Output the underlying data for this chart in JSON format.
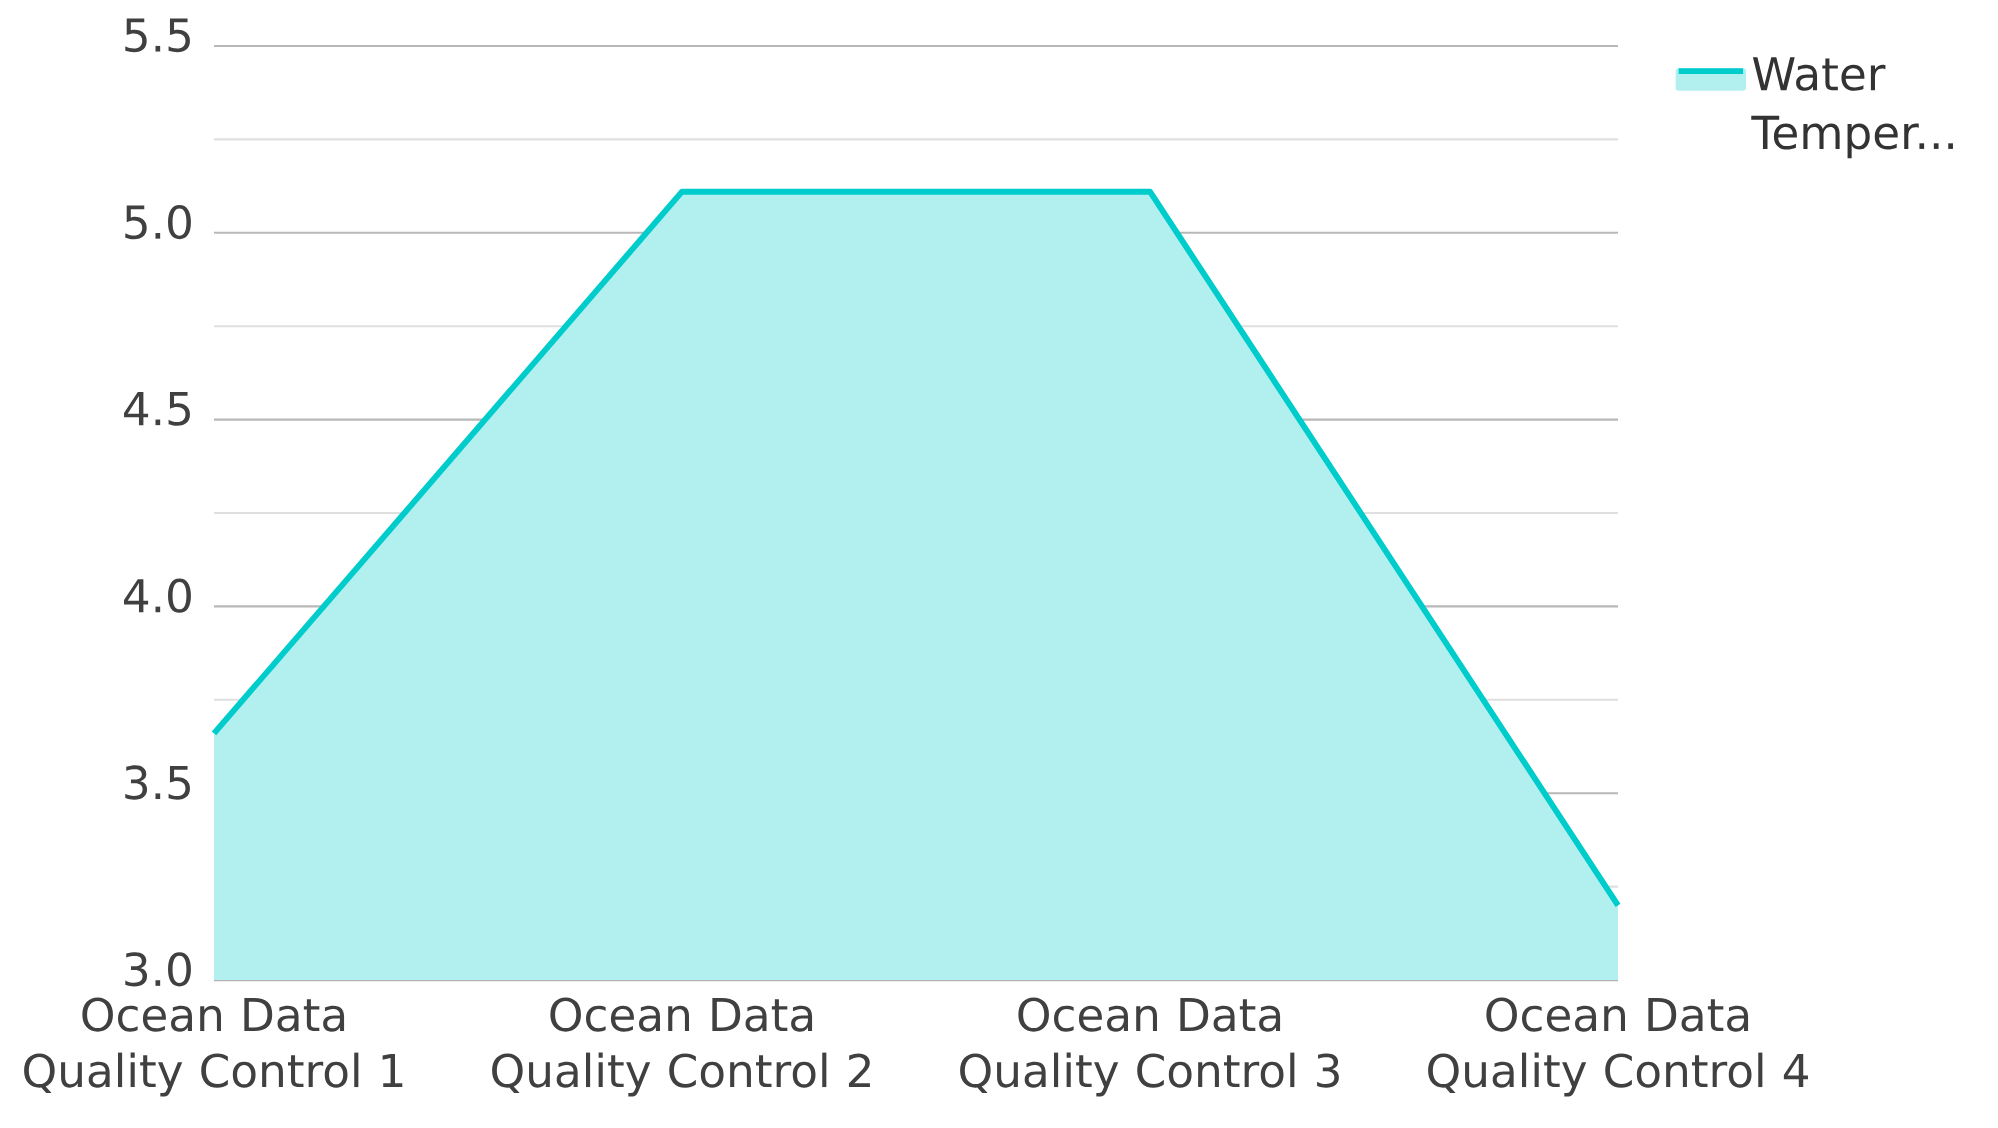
{
  "chart_data": {
    "type": "area",
    "categories": [
      "Ocean Data Quality Control 1",
      "Ocean Data Quality Control 2",
      "Ocean Data Quality Control 3",
      "Ocean Data Quality Control 4"
    ],
    "series": [
      {
        "name": "Water Temper...",
        "color": "#00cccc",
        "values": [
          3.66,
          5.11,
          5.11,
          3.2
        ]
      }
    ],
    "ylim": [
      3.0,
      5.5
    ],
    "yticks": [
      {
        "value": 3.0,
        "label": "3.0"
      },
      {
        "value": 3.5,
        "label": "3.5"
      },
      {
        "value": 4.0,
        "label": "4.0"
      },
      {
        "value": 4.5,
        "label": "4.5"
      },
      {
        "value": 5.0,
        "label": "5.0"
      },
      {
        "value": 5.5,
        "label": "5.5"
      }
    ],
    "grid": "y",
    "legend": "top right",
    "marker": "none",
    "line_style": "solid"
  }
}
